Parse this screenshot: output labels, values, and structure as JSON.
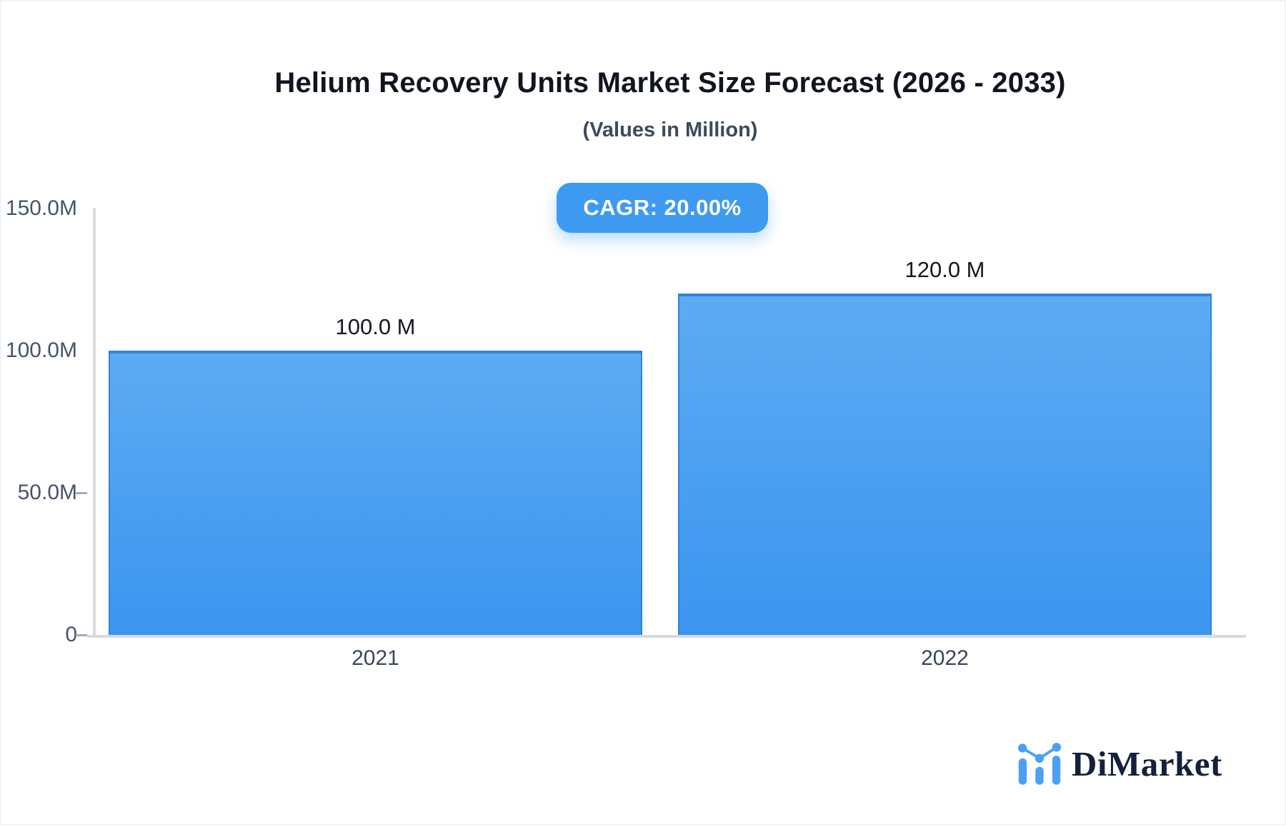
{
  "header": {
    "title": "Helium Recovery Units Market Size Forecast (2026 - 2033)",
    "subtitle": "(Values in Million)"
  },
  "badge": {
    "label": "CAGR: 20.00%",
    "color": "#3d9af0"
  },
  "chart_data": {
    "type": "bar",
    "title": "Helium Recovery Units Market Size Forecast (2026 - 2033)",
    "subtitle": "(Values in Million)",
    "unit": "Million",
    "cagr_percent": 20.0,
    "categories": [
      "2021",
      "2022"
    ],
    "values": [
      100.0,
      120.0
    ],
    "value_labels": [
      "100.0 M",
      "120.0 M"
    ],
    "ylim": [
      0,
      150
    ],
    "y_ticks": [
      {
        "label": "150.0M",
        "value": 150,
        "dash": false
      },
      {
        "label": "100.0M",
        "value": 100,
        "dash": false
      },
      {
        "label": "50.0M",
        "value": 50,
        "dash": true
      },
      {
        "label": "0",
        "value": 0,
        "dash": true
      }
    ],
    "grid": false,
    "legend": "none",
    "bar_color_top": "#5dabf3",
    "bar_color_bottom": "#3b95ef",
    "bar_border_color": "#2f84db",
    "axis_color": "#d9dce2"
  },
  "logo": {
    "name": "DiMarket",
    "icon": "bar-chart-with-trend-icon",
    "icon_color": "#4aa0f5",
    "text_color": "#14213a"
  }
}
